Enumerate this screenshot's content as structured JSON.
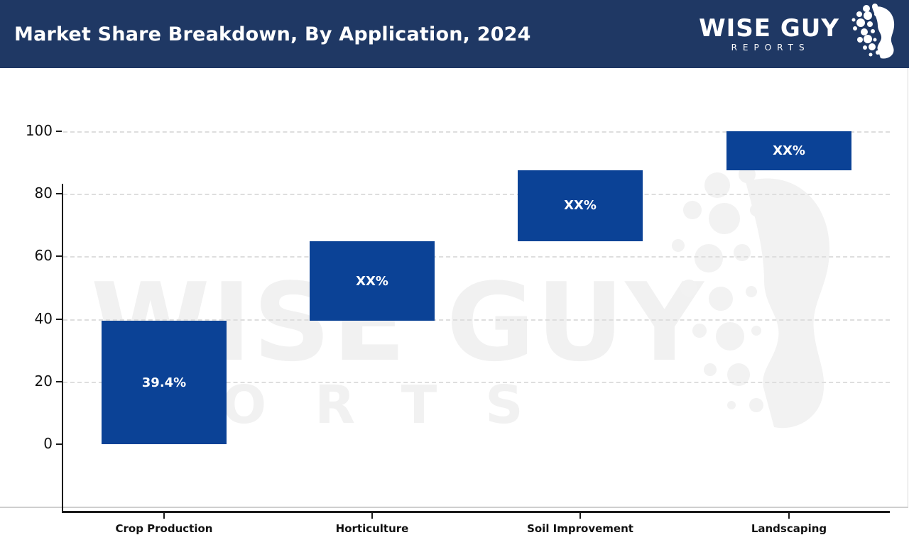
{
  "header": {
    "title": "Market Share Breakdown, By Application, 2024",
    "brand": {
      "line1": "WISE GUY",
      "line2": "REPORTS"
    }
  },
  "watermark": {
    "line1": "WISE GUY",
    "line2": "PORTS"
  },
  "colors": {
    "header_bg": "#1f3864",
    "bar": "#0b4296",
    "grid": "#dedede",
    "axis": "#1a1a1a",
    "bar_label": "#ffffff",
    "watermark": "#f1f1f1"
  },
  "chart_data": {
    "type": "bar",
    "subtype": "waterfall-floating-bars",
    "title": "Market Share Breakdown, By Application, 2024",
    "xlabel": "",
    "ylabel": "",
    "categories": [
      "Crop Production",
      "Horticulture",
      "Soil Improvement",
      "Landscaping"
    ],
    "segments": [
      {
        "category": "Crop Production",
        "label": "39.4%",
        "start": 0,
        "end": 39.4
      },
      {
        "category": "Horticulture",
        "label": "XX%",
        "start": 39.4,
        "end": 64.8
      },
      {
        "category": "Soil Improvement",
        "label": "XX%",
        "start": 64.8,
        "end": 87.6
      },
      {
        "category": "Landscaping",
        "label": "XX%",
        "start": 87.6,
        "end": 100
      }
    ],
    "yticks": [
      0,
      20,
      40,
      60,
      80,
      100
    ],
    "ylim": [
      0,
      105
    ],
    "grid": "horizontal-dashed",
    "legend": "none"
  }
}
